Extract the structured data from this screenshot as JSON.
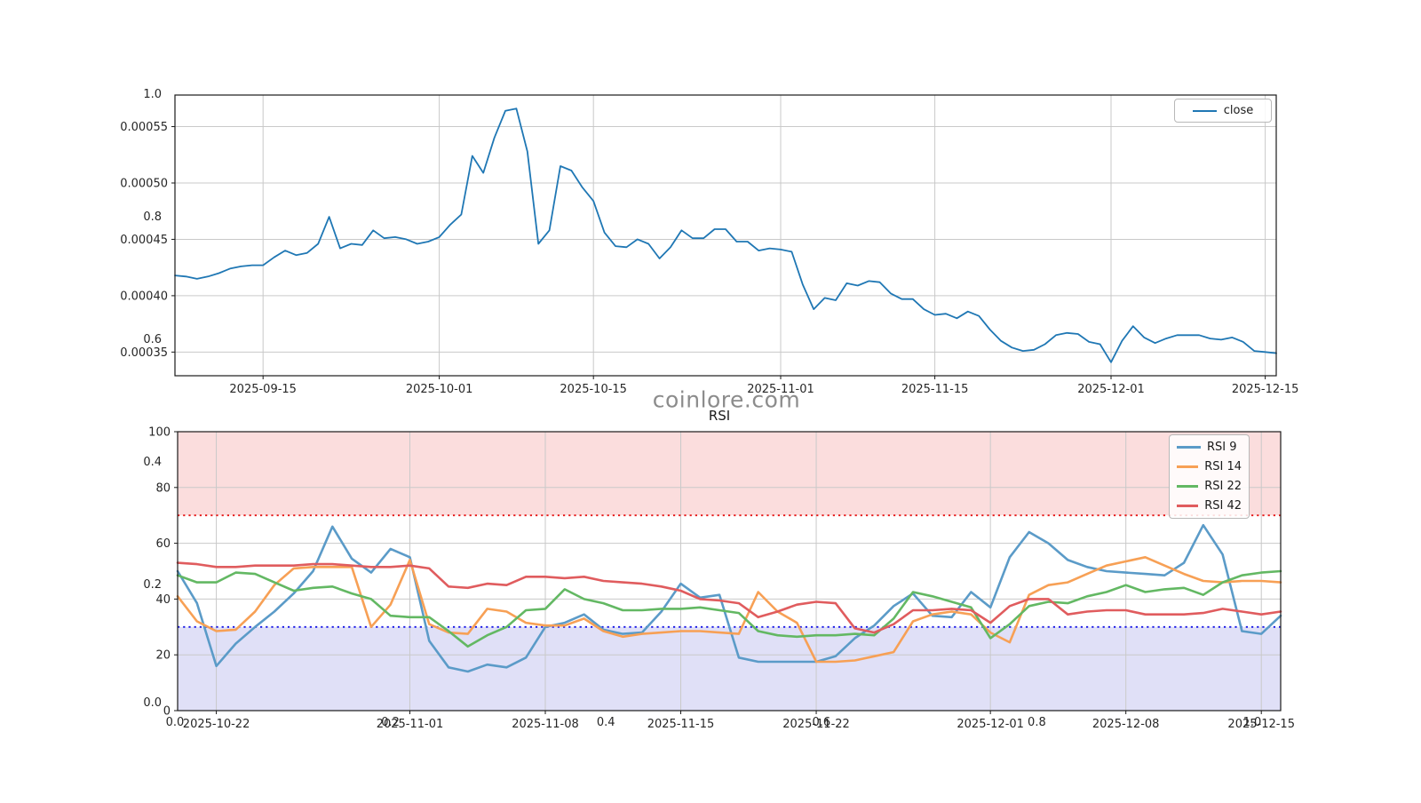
{
  "figure": {
    "watermark": "coinlore.com"
  },
  "price_chart": {
    "legend": {
      "label": "close"
    },
    "line_color": "#1f77b4",
    "y_tick_labels": [
      "0.00055",
      "0.00050",
      "0.00045",
      "0.00040",
      "0.00035"
    ],
    "y_tick_values": [
      0.00055,
      0.0005,
      0.00045,
      0.0004,
      0.00035
    ],
    "x_tick_labels": [
      "2025-09-15",
      "2025-10-01",
      "2025-10-15",
      "2025-11-01",
      "2025-11-15",
      "2025-12-01",
      "2025-12-15"
    ]
  },
  "rsi_chart": {
    "title": "RSI",
    "legend_items": [
      {
        "label": "RSI 9",
        "color": "#5b9bc8"
      },
      {
        "label": "RSI 14",
        "color": "#f7a055"
      },
      {
        "label": "RSI 22",
        "color": "#63b863"
      },
      {
        "label": "RSI 42",
        "color": "#e05c5e"
      }
    ],
    "y_tick_labels": [
      "100",
      "80",
      "60",
      "40",
      "20",
      "0"
    ],
    "y_tick_values": [
      100,
      80,
      60,
      40,
      20,
      0
    ],
    "x_tick_labels": [
      "2025-10-22",
      "2025-11-01",
      "2025-11-08",
      "2025-11-15",
      "2025-11-22",
      "2025-12-01",
      "2025-12-08",
      "2025-12-15"
    ],
    "overbought_level": 70,
    "oversold_level": 30,
    "overbought_band_color": "#fbdddd",
    "oversold_band_color": "#e0e0f7",
    "overbought_line_color": "#e51616",
    "oversold_line_color": "#1616e5"
  },
  "phantom_axis": {
    "y_labels": [
      "1.0",
      "0.8",
      "0.6",
      "0.4",
      "0.2",
      "0.0"
    ],
    "x_labels": [
      "0.0",
      "0.2",
      "0.4",
      "0.6",
      "0.8",
      "1.0"
    ]
  },
  "chart_data": [
    {
      "type": "line",
      "title": "",
      "xlabel": "",
      "ylabel": "",
      "legend_position": "upper right",
      "grid": true,
      "ylim": [
        0.000329,
        0.000578
      ],
      "x": [
        "2025-09-07",
        "2025-09-08",
        "2025-09-09",
        "2025-09-10",
        "2025-09-11",
        "2025-09-12",
        "2025-09-13",
        "2025-09-14",
        "2025-09-15",
        "2025-09-16",
        "2025-09-17",
        "2025-09-18",
        "2025-09-19",
        "2025-09-20",
        "2025-09-21",
        "2025-09-22",
        "2025-09-23",
        "2025-09-24",
        "2025-09-25",
        "2025-09-26",
        "2025-09-27",
        "2025-09-28",
        "2025-09-29",
        "2025-09-30",
        "2025-10-01",
        "2025-10-02",
        "2025-10-03",
        "2025-10-04",
        "2025-10-05",
        "2025-10-06",
        "2025-10-07",
        "2025-10-08",
        "2025-10-09",
        "2025-10-10",
        "2025-10-11",
        "2025-10-12",
        "2025-10-13",
        "2025-10-14",
        "2025-10-15",
        "2025-10-16",
        "2025-10-17",
        "2025-10-18",
        "2025-10-19",
        "2025-10-20",
        "2025-10-21",
        "2025-10-22",
        "2025-10-23",
        "2025-10-24",
        "2025-10-25",
        "2025-10-26",
        "2025-10-27",
        "2025-10-28",
        "2025-10-29",
        "2025-10-30",
        "2025-10-31",
        "2025-11-01",
        "2025-11-02",
        "2025-11-03",
        "2025-11-04",
        "2025-11-05",
        "2025-11-06",
        "2025-11-07",
        "2025-11-08",
        "2025-11-09",
        "2025-11-10",
        "2025-11-11",
        "2025-11-12",
        "2025-11-13",
        "2025-11-14",
        "2025-11-15",
        "2025-11-16",
        "2025-11-17",
        "2025-11-18",
        "2025-11-19",
        "2025-11-20",
        "2025-11-21",
        "2025-11-22",
        "2025-11-23",
        "2025-11-24",
        "2025-11-25",
        "2025-11-26",
        "2025-11-27",
        "2025-11-28",
        "2025-11-29",
        "2025-11-30",
        "2025-12-01",
        "2025-12-02",
        "2025-12-03",
        "2025-12-04",
        "2025-12-05",
        "2025-12-06",
        "2025-12-07",
        "2025-12-08",
        "2025-12-09",
        "2025-12-10",
        "2025-12-11",
        "2025-12-12",
        "2025-12-13",
        "2025-12-14",
        "2025-12-15",
        "2025-12-16"
      ],
      "series": [
        {
          "name": "close",
          "color": "#1f77b4",
          "values": [
            0.000418,
            0.000417,
            0.000415,
            0.000417,
            0.00042,
            0.000424,
            0.000426,
            0.000427,
            0.000427,
            0.000434,
            0.00044,
            0.000436,
            0.000438,
            0.000446,
            0.00047,
            0.000442,
            0.000446,
            0.000445,
            0.000458,
            0.000451,
            0.000452,
            0.00045,
            0.000446,
            0.000448,
            0.000452,
            0.000463,
            0.000472,
            0.000524,
            0.000509,
            0.00054,
            0.000564,
            0.000566,
            0.000528,
            0.000446,
            0.000458,
            0.000515,
            0.000511,
            0.000496,
            0.000484,
            0.000456,
            0.000444,
            0.000443,
            0.00045,
            0.000446,
            0.000433,
            0.000443,
            0.000458,
            0.000451,
            0.000451,
            0.000459,
            0.000459,
            0.000448,
            0.000448,
            0.00044,
            0.000442,
            0.000441,
            0.000439,
            0.00041,
            0.000388,
            0.000398,
            0.000396,
            0.000411,
            0.000409,
            0.000413,
            0.000412,
            0.000402,
            0.000397,
            0.000397,
            0.000388,
            0.000383,
            0.000384,
            0.00038,
            0.000386,
            0.000382,
            0.00037,
            0.00036,
            0.000354,
            0.000351,
            0.000352,
            0.000357,
            0.000365,
            0.000367,
            0.000366,
            0.000359,
            0.000357,
            0.000341,
            0.00036,
            0.000373,
            0.000363,
            0.000358,
            0.000362,
            0.000365,
            0.000365,
            0.000365,
            0.000362,
            0.000361,
            0.000363,
            0.000359,
            0.000351,
            0.00035,
            0.000349
          ]
        }
      ]
    },
    {
      "type": "line",
      "title": "RSI",
      "xlabel": "",
      "ylabel": "",
      "legend_position": "upper right",
      "grid": true,
      "ylim": [
        0,
        100
      ],
      "overbought": 70,
      "oversold": 30,
      "x": [
        "2025-10-20",
        "2025-10-21",
        "2025-10-22",
        "2025-10-23",
        "2025-10-24",
        "2025-10-25",
        "2025-10-26",
        "2025-10-27",
        "2025-10-28",
        "2025-10-29",
        "2025-10-30",
        "2025-10-31",
        "2025-11-01",
        "2025-11-02",
        "2025-11-03",
        "2025-11-04",
        "2025-11-05",
        "2025-11-06",
        "2025-11-07",
        "2025-11-08",
        "2025-11-09",
        "2025-11-10",
        "2025-11-11",
        "2025-11-12",
        "2025-11-13",
        "2025-11-14",
        "2025-11-15",
        "2025-11-16",
        "2025-11-17",
        "2025-11-18",
        "2025-11-19",
        "2025-11-20",
        "2025-11-21",
        "2025-11-22",
        "2025-11-23",
        "2025-11-24",
        "2025-11-25",
        "2025-11-26",
        "2025-11-27",
        "2025-11-28",
        "2025-11-29",
        "2025-11-30",
        "2025-12-01",
        "2025-12-02",
        "2025-12-03",
        "2025-12-04",
        "2025-12-05",
        "2025-12-06",
        "2025-12-07",
        "2025-12-08",
        "2025-12-09",
        "2025-12-10",
        "2025-12-11",
        "2025-12-12",
        "2025-12-13",
        "2025-12-14",
        "2025-12-15",
        "2025-12-16"
      ],
      "series": [
        {
          "name": "RSI 9",
          "color": "#5b9bc8",
          "values": [
            50,
            38.5,
            16,
            24,
            30,
            35.5,
            42,
            50,
            66,
            54.5,
            49.5,
            58,
            55,
            25,
            15.5,
            14,
            16.5,
            15.5,
            19,
            30,
            31.5,
            34.5,
            29,
            27.5,
            28,
            35.5,
            45.5,
            40.5,
            41.5,
            19,
            17.5,
            17.5,
            17.5,
            17.5,
            19.5,
            26,
            30.5,
            37.5,
            42,
            34,
            33.5,
            42.5,
            37,
            55,
            64,
            60,
            54,
            51.5,
            50,
            49.5,
            49,
            48.5,
            53,
            66.5,
            56,
            28.5,
            27.5,
            34
          ]
        },
        {
          "name": "RSI 14",
          "color": "#f7a055",
          "values": [
            41,
            32,
            28.5,
            29,
            35.5,
            45,
            51,
            51.5,
            51.5,
            51.5,
            30,
            38,
            54,
            31,
            28,
            27.5,
            36.5,
            35.5,
            31.5,
            30.5,
            30.5,
            33,
            28.5,
            26.5,
            27.5,
            28,
            28.5,
            28.5,
            28,
            27.5,
            42.5,
            35.5,
            31.5,
            17.5,
            17.5,
            18,
            19.5,
            21,
            32,
            34.5,
            35.5,
            34.5,
            28,
            24.5,
            41.5,
            45,
            46,
            49,
            52,
            53.5,
            55,
            52,
            49,
            46.5,
            46,
            46.5,
            46.5,
            46
          ]
        },
        {
          "name": "RSI 22",
          "color": "#63b863",
          "values": [
            48.5,
            46,
            46,
            49.5,
            49,
            46,
            43,
            44,
            44.5,
            42,
            40,
            34,
            33.5,
            33.5,
            28.5,
            23,
            27,
            30,
            36,
            36.5,
            43.5,
            40,
            38.5,
            36,
            36,
            36.5,
            36.5,
            37,
            36,
            35,
            28.5,
            27,
            26.5,
            27,
            27,
            27.5,
            27,
            33,
            42.5,
            41,
            39,
            37,
            26,
            31,
            37.5,
            39,
            38.5,
            41,
            42.5,
            45,
            42.5,
            43.5,
            44,
            41.5,
            46,
            48.5,
            49.5,
            50
          ]
        },
        {
          "name": "RSI 42",
          "color": "#e05c5e",
          "values": [
            53,
            52.5,
            51.5,
            51.5,
            52,
            52,
            52,
            52.5,
            52.5,
            52,
            51.5,
            51.5,
            52,
            51,
            44.5,
            44,
            45.5,
            45,
            48,
            48,
            47.5,
            48,
            46.5,
            46,
            45.5,
            44.5,
            43,
            40,
            39.5,
            38.5,
            33.5,
            35.5,
            38,
            39,
            38.5,
            29.5,
            28,
            31,
            36,
            36,
            36.5,
            36,
            31.5,
            37.5,
            40,
            40,
            34.5,
            35.5,
            36,
            36,
            34.5,
            34.5,
            34.5,
            35,
            36.5,
            35.5,
            34.5,
            35.5
          ]
        }
      ]
    }
  ]
}
